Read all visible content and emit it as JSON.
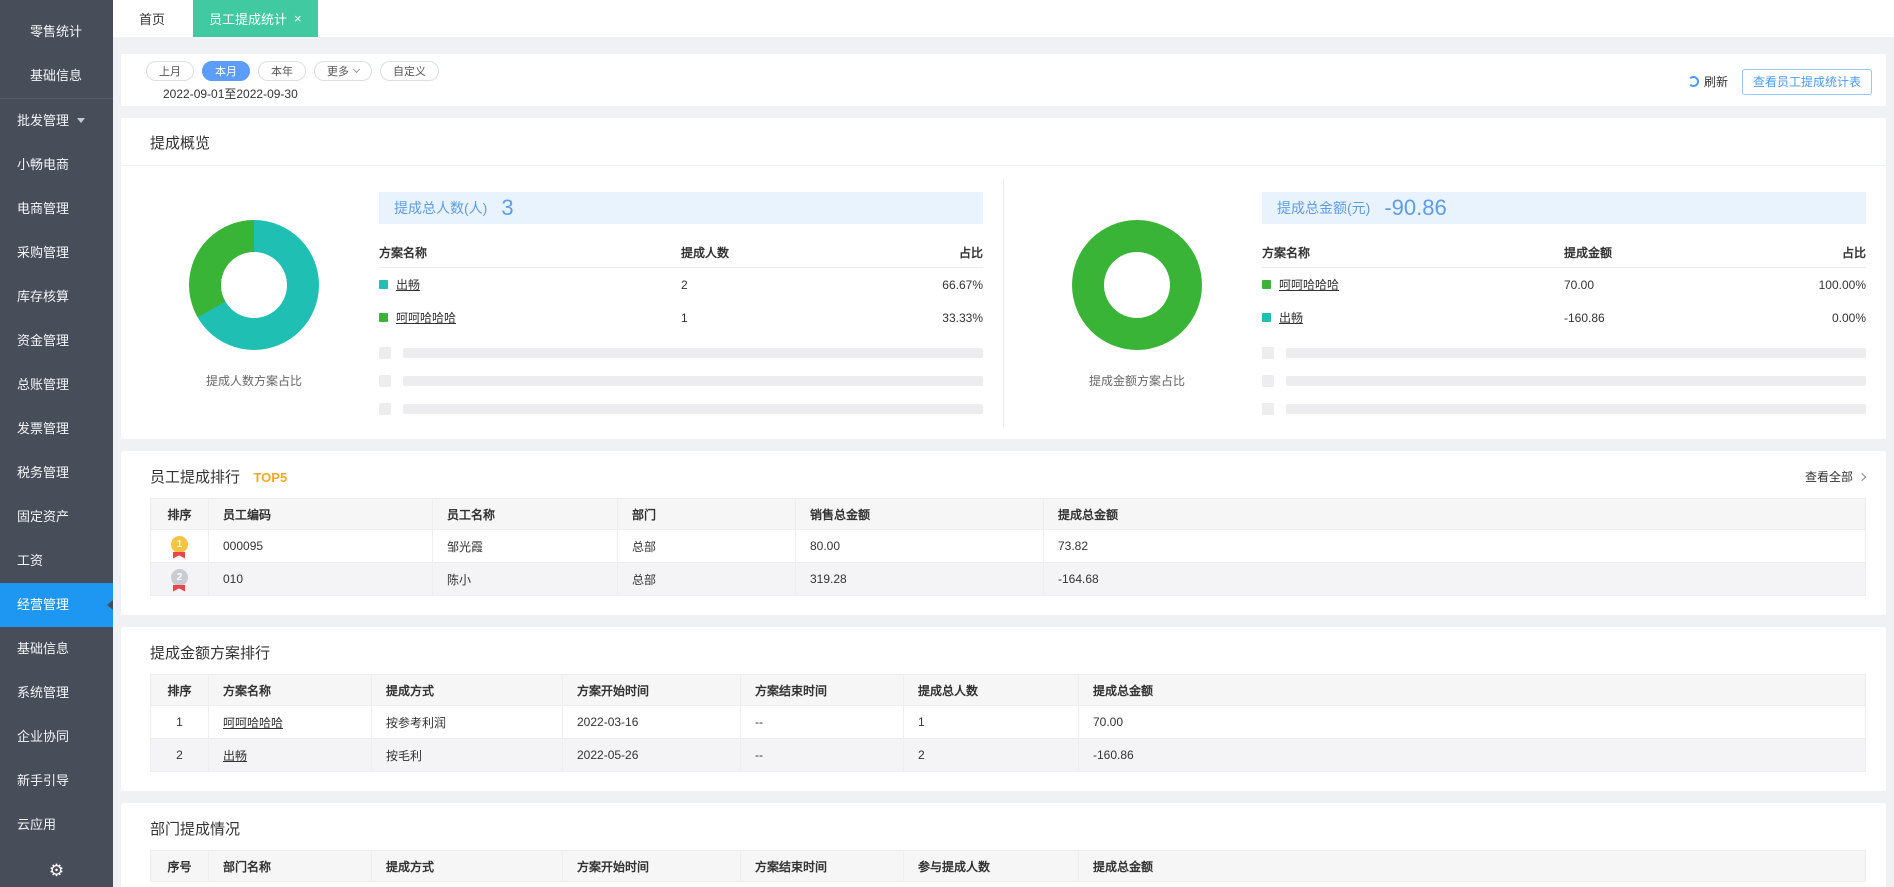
{
  "sidebar": {
    "top_items": [
      "零售统计",
      "基础信息"
    ],
    "items": [
      {
        "label": "批发管理",
        "caret": true
      },
      {
        "label": "小畅电商"
      },
      {
        "label": "电商管理"
      },
      {
        "label": "采购管理"
      },
      {
        "label": "库存核算"
      },
      {
        "label": "资金管理"
      },
      {
        "label": "总账管理"
      },
      {
        "label": "发票管理"
      },
      {
        "label": "税务管理"
      },
      {
        "label": "固定资产"
      },
      {
        "label": "工资"
      },
      {
        "label": "经营管理",
        "active": true
      },
      {
        "label": "基础信息"
      },
      {
        "label": "系统管理"
      },
      {
        "label": "企业协同"
      },
      {
        "label": "新手引导"
      },
      {
        "label": "云应用"
      }
    ]
  },
  "tabs": {
    "home": "首页",
    "active": "员工提成统计",
    "close": "×"
  },
  "toolbar": {
    "pills": [
      {
        "label": "上月"
      },
      {
        "label": "本月",
        "active": true
      },
      {
        "label": "本年"
      },
      {
        "label": "更多",
        "caret": true
      },
      {
        "label": "自定义"
      }
    ],
    "date_range": "2022-09-01至2022-09-30",
    "refresh": "刷新",
    "view_report": "查看员工提成统计表"
  },
  "overview": {
    "title": "提成概览",
    "left": {
      "stat_label": "提成总人数(人)",
      "stat_value": "3",
      "caption": "提成人数方案占比",
      "table": {
        "headers": [
          "方案名称",
          "提成人数",
          "占比"
        ],
        "rows": [
          {
            "color": "#1fc0b3",
            "name": "出畅",
            "value": "2",
            "pct": "66.67%"
          },
          {
            "color": "#3ab437",
            "name": "呵呵哈哈哈",
            "value": "1",
            "pct": "33.33%"
          }
        ],
        "skeleton_rows": 3
      }
    },
    "right": {
      "stat_label": "提成总金额(元)",
      "stat_value": "-90.86",
      "caption": "提成金额方案占比",
      "table": {
        "headers": [
          "方案名称",
          "提成金额",
          "占比"
        ],
        "rows": [
          {
            "color": "#3ab437",
            "name": "呵呵哈哈哈",
            "value": "70.00",
            "pct": "100.00%"
          },
          {
            "color": "#1fc0b3",
            "name": "出畅",
            "value": "-160.86",
            "pct": "0.00%"
          }
        ],
        "skeleton_rows": 3
      }
    }
  },
  "employee_ranking": {
    "title": "员工提成排行",
    "badge": "TOP5",
    "view_all": "查看全部",
    "headers": [
      "排序",
      "员工编码",
      "员工名称",
      "部门",
      "销售总金额",
      "提成总金额"
    ],
    "rows": [
      {
        "rank": 1,
        "cells": [
          "000095",
          "邹光霞",
          "总部",
          "80.00",
          "73.82"
        ]
      },
      {
        "rank": 2,
        "cells": [
          "010",
          "陈小",
          "总部",
          "319.28",
          "-164.68"
        ]
      }
    ]
  },
  "plan_ranking": {
    "title": "提成金额方案排行",
    "headers": [
      "排序",
      "方案名称",
      "提成方式",
      "方案开始时间",
      "方案结束时间",
      "提成总人数",
      "提成总金额"
    ],
    "rows": [
      [
        "1",
        "呵呵哈哈哈",
        "按参考利润",
        "2022-03-16",
        "--",
        "1",
        "70.00"
      ],
      [
        "2",
        "出畅",
        "按毛利",
        "2022-05-26",
        "--",
        "2",
        "-160.86"
      ]
    ]
  },
  "dept_commission": {
    "title": "部门提成情况",
    "headers": [
      "序号",
      "部门名称",
      "提成方式",
      "方案开始时间",
      "方案结束时间",
      "参与提成人数",
      "提成总金额"
    ],
    "rows": []
  },
  "chart_data": [
    {
      "type": "pie",
      "title": "提成人数方案占比",
      "series": [
        {
          "name": "出畅",
          "value": 2,
          "pct": 66.67,
          "color": "#1fc0b3"
        },
        {
          "name": "呵呵哈哈哈",
          "value": 1,
          "pct": 33.33,
          "color": "#3ab437"
        }
      ]
    },
    {
      "type": "pie",
      "title": "提成金额方案占比",
      "series": [
        {
          "name": "呵呵哈哈哈",
          "value": 70.0,
          "pct": 100.0,
          "color": "#3ab437"
        },
        {
          "name": "出畅",
          "value": -160.86,
          "pct": 0.0,
          "color": "#1fc0b3"
        }
      ]
    }
  ],
  "colors": {
    "sidebar_bg": "#474d59",
    "sidebar_active": "#1e97f3",
    "tab_active_green": "#41c9a2",
    "pill_active_blue": "#5b9df8",
    "stat_blue": "#5e9ce6",
    "teal": "#1fc0b3",
    "green": "#3ab437",
    "top5_orange": "#f9a825"
  }
}
